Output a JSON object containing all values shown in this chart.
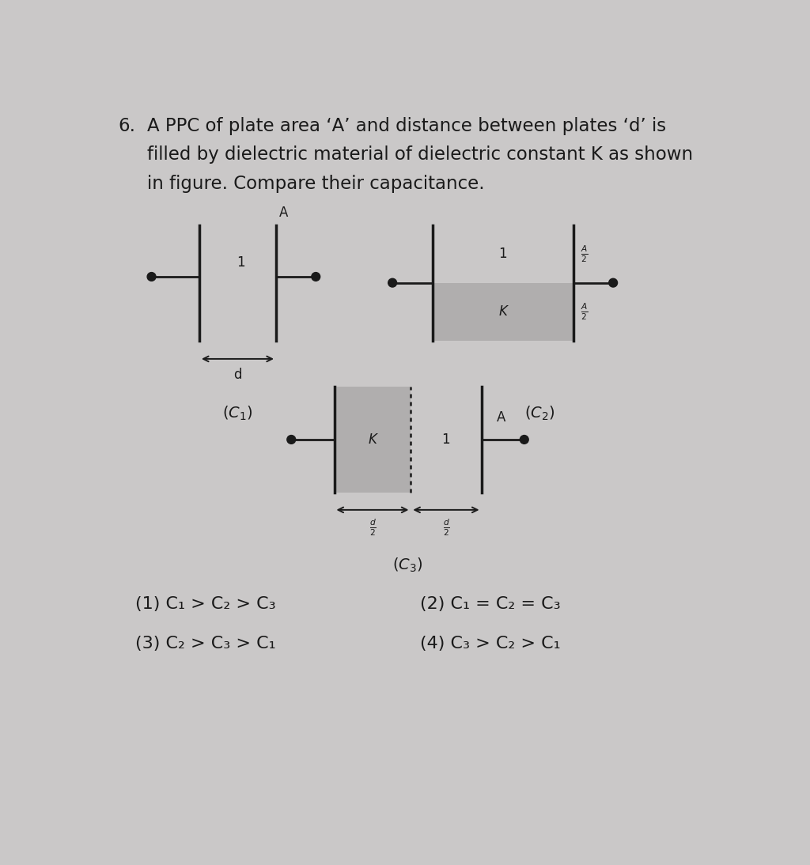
{
  "bg_color": "#cac8c8",
  "title_number": "6.",
  "title_line1": "A PPC of plate area ‘A’ and distance between plates ‘d’ is",
  "title_line2": "filled by dielectric material of dielectric constant K as shown",
  "title_line3": "in figure. Compare their capacitance.",
  "title_fontsize": 16.5,
  "answer_options": [
    "(1) C₁ > C₂ > C₃",
    "(3) C₂ > C₃ > C₁",
    "(2) C₁ = C₂ = C₃",
    "(4) C₃ > C₂ > C₁"
  ],
  "dielectric_gray": "#b0aeae",
  "plate_color": "#1a1a1a",
  "wire_color": "#1a1a1a",
  "dot_color": "#1a1a1a",
  "text_color": "#1a1a1a",
  "lw": 2.0,
  "dot_r": 0.07
}
